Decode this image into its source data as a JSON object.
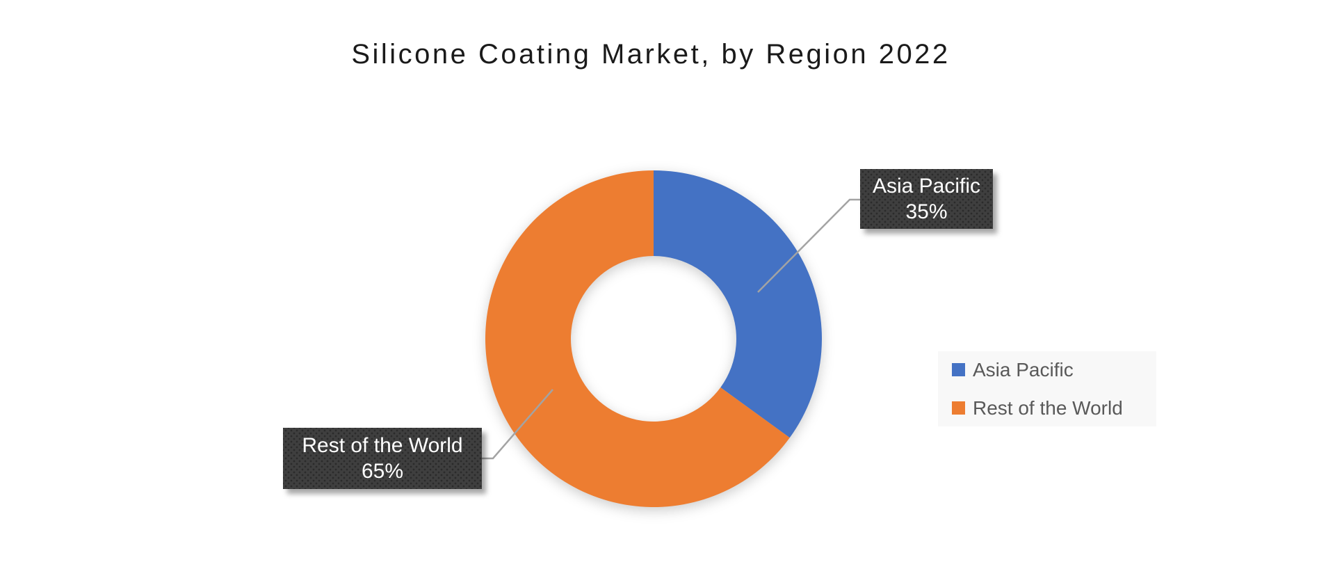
{
  "title": "Silicone Coating Market, by Region 2022",
  "chart_data": {
    "type": "pie",
    "subtype": "donut",
    "title": "Silicone Coating Market, by Region 2022",
    "categories": [
      "Asia Pacific",
      "Rest of the World"
    ],
    "values": [
      35,
      65
    ],
    "unit": "%",
    "series": [
      {
        "name": "Asia Pacific",
        "value": 35,
        "color": "#4472c4"
      },
      {
        "name": "Rest of the World",
        "value": 65,
        "color": "#ed7d31"
      }
    ],
    "start_angle_deg": 0,
    "direction": "clockwise",
    "inner_radius_ratio": 0.49,
    "legend_position": "right",
    "data_labels": "category name + percentage in dark callout boxes with leader lines"
  },
  "callouts": {
    "asia_pacific": {
      "label": "Asia Pacific",
      "value": "35%"
    },
    "rest_of_world": {
      "label": "Rest of the World",
      "value": "65%"
    }
  },
  "legend": {
    "items": [
      {
        "label": "Asia Pacific",
        "color": "#4472c4"
      },
      {
        "label": "Rest of the World",
        "color": "#ed7d31"
      }
    ]
  },
  "style": {
    "slice_blue": "#4472c4",
    "slice_orange": "#ed7d31",
    "callout_bg": "#3f3f3f",
    "callout_text": "#ffffff",
    "leader_line": "#a3a3a3",
    "legend_bg": "#f8f8f8",
    "legend_text": "#595959",
    "title_color": "#1a1a1a",
    "background": "#ffffff"
  }
}
